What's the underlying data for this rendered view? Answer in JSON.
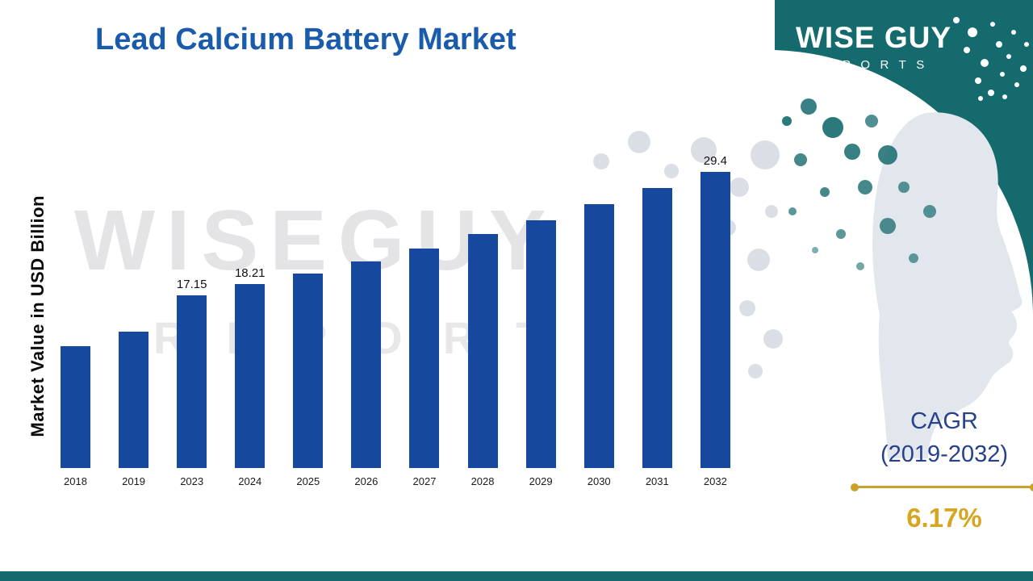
{
  "title": "Lead Calcium Battery Market",
  "ylabel": "Market Value in USD Billion",
  "watermark": {
    "line1": "WISEGUY",
    "line2": "REPORTS"
  },
  "logo": {
    "line1": "WISE GUY",
    "line2": "REPORTS"
  },
  "cagr": {
    "label": "CAGR",
    "range": "(2019-2032)",
    "value": "6.17%"
  },
  "colors": {
    "bar_blue": "#16489E",
    "title_blue": "#1A5CAB",
    "teal": "#156A6D",
    "gold": "#D7A621",
    "cagr_blue": "#27418D",
    "watermark_gray": "#E4E4E6"
  },
  "chart_data": {
    "type": "bar",
    "title": "Lead Calcium Battery Market",
    "xlabel": "",
    "ylabel": "Market Value in USD Billion",
    "categories": [
      "2018",
      "2019",
      "2023",
      "2024",
      "2025",
      "2026",
      "2027",
      "2028",
      "2029",
      "2030",
      "2031",
      "2032"
    ],
    "values": [
      12.1,
      13.5,
      17.15,
      18.21,
      19.3,
      20.5,
      21.8,
      23.2,
      24.6,
      26.2,
      27.8,
      29.4
    ],
    "bar_labels": [
      "",
      "",
      "17.15",
      "18.21",
      "",
      "",
      "",
      "",
      "",
      "",
      "",
      "29.4"
    ],
    "bar_color": "#16489E",
    "ylim": [
      0,
      32.8
    ],
    "grid": false,
    "legend": false,
    "unit": "USD Billion"
  }
}
